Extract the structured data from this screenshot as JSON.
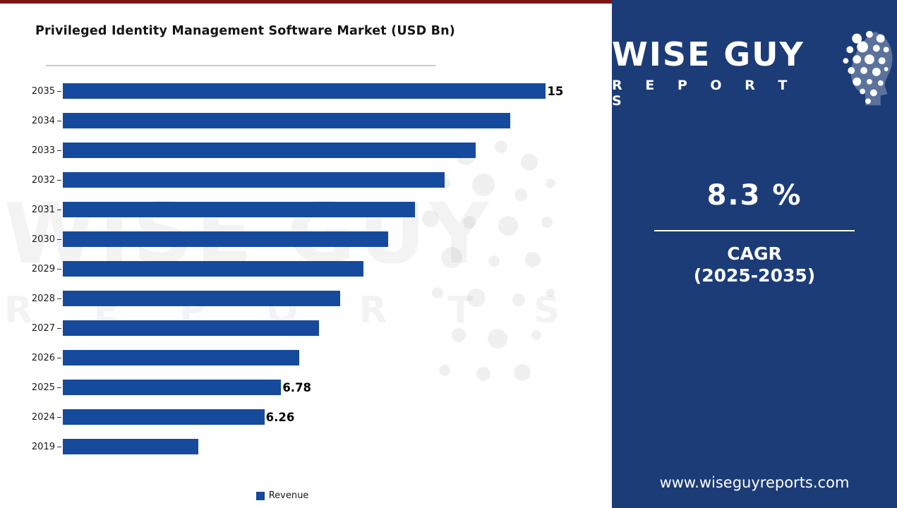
{
  "colors": {
    "bar": "#164a9c",
    "panel": "#1c3c78",
    "accent_strip": "#7d1416"
  },
  "chart_data": {
    "type": "bar",
    "orientation": "horizontal",
    "title": "Privileged Identity Management Software Market (USD Bn)",
    "categories": [
      "2035",
      "2034",
      "2033",
      "2032",
      "2031",
      "2030",
      "2029",
      "2028",
      "2027",
      "2026",
      "2025",
      "2024",
      "2019"
    ],
    "values": [
      15,
      13.9,
      12.83,
      11.85,
      10.94,
      10.1,
      9.33,
      8.61,
      7.95,
      7.34,
      6.78,
      6.26,
      4.2
    ],
    "bar_labels": [
      "15",
      "",
      "",
      "",
      "",
      "",
      "",
      "",
      "",
      "",
      "6.78",
      "6.26",
      ""
    ],
    "xlim": [
      0,
      16
    ],
    "xlabel": "",
    "ylabel": "",
    "grid": false,
    "legend": [
      "Revenue"
    ],
    "legend_position": "bottom-center"
  },
  "sidebar": {
    "logo_line1": "WISE GUY",
    "logo_line2": "R E P O R T S",
    "cagr_value": "8.3 %",
    "cagr_label_line1": "CAGR",
    "cagr_label_line2": "(2025-2035)",
    "website": "www.wiseguyreports.com"
  },
  "watermark": {
    "line1": "WISE GUY",
    "line2": "R E P O R T S"
  }
}
